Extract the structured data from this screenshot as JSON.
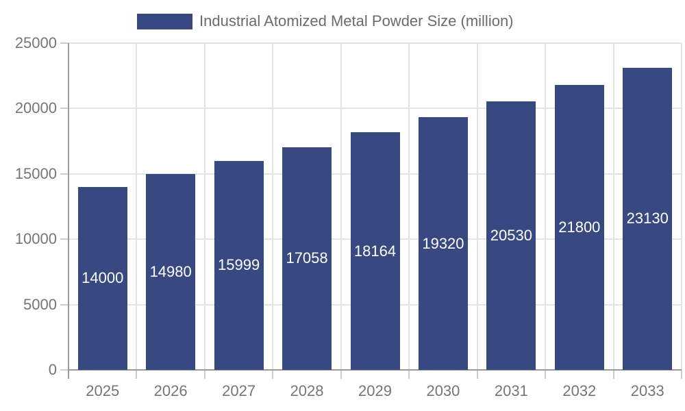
{
  "chart_data": {
    "type": "bar",
    "title": "Industrial Atomized Metal Powder Size (million)",
    "categories": [
      "2025",
      "2026",
      "2027",
      "2028",
      "2029",
      "2030",
      "2031",
      "2032",
      "2033"
    ],
    "values": [
      14000,
      14980,
      15999,
      17058,
      18164,
      19320,
      20530,
      21800,
      23130
    ],
    "xlabel": "",
    "ylabel": "",
    "ylim": [
      0,
      25000
    ],
    "yticks": [
      0,
      5000,
      10000,
      15000,
      20000,
      25000
    ],
    "grid": true,
    "legend_position": "top",
    "value_labels": "inside-center",
    "colors": {
      "bar": "#374980",
      "grid_line": "#e3e3e3",
      "axis_line": "#9a9a9a",
      "tick_line": "#cccccc",
      "axis_text": "#757575",
      "legend_text": "#6b6b6b",
      "value_label": "#ffffff",
      "background": "#ffffff"
    }
  }
}
